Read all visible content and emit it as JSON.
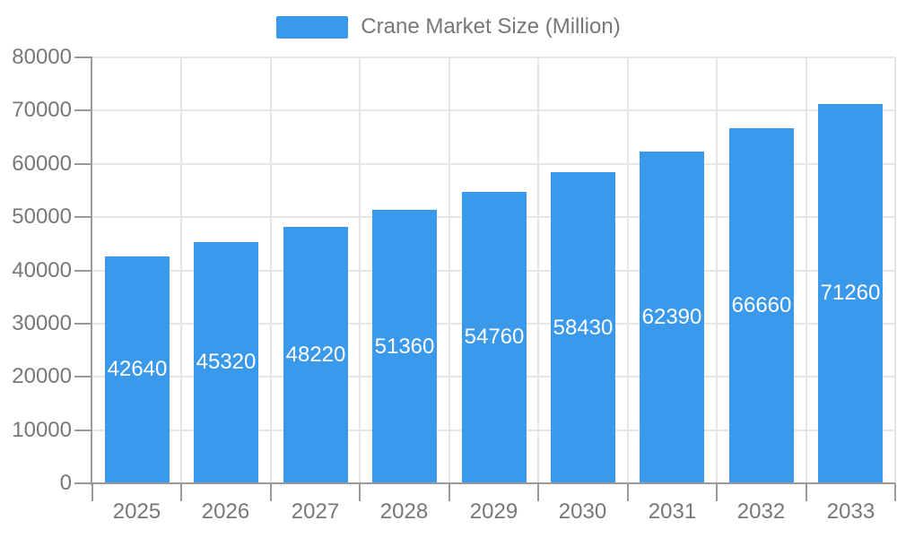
{
  "chart_data": {
    "type": "bar",
    "title": "Crane Market Size (Million)",
    "categories": [
      "2025",
      "2026",
      "2027",
      "2028",
      "2029",
      "2030",
      "2031",
      "2032",
      "2033"
    ],
    "series": [
      {
        "name": "Crane Market Size (Million)",
        "values": [
          42640,
          45320,
          48220,
          51360,
          54760,
          58430,
          62390,
          66660,
          71260
        ]
      }
    ],
    "value_labels": [
      "42640",
      "45320",
      "48220",
      "51360",
      "54760",
      "58430",
      "62390",
      "66660",
      "71260"
    ],
    "value_label_position": "inside-center",
    "xlabel": "",
    "ylabel": "",
    "ylim": [
      0,
      80000
    ],
    "ytick_interval": 10000,
    "ytick_labels": [
      "0",
      "10000",
      "20000",
      "30000",
      "40000",
      "50000",
      "60000",
      "70000",
      "80000"
    ],
    "grid": true,
    "legend_position": "top-center",
    "colors": {
      "bar": "#3B99EC",
      "grid": "#E6E6E6",
      "axis": "#999999",
      "axis_text": "#75787B",
      "legend_text": "#75787B",
      "value_label": "#FFFFFF",
      "background": "#FFFFFF"
    }
  },
  "legend": {
    "label": "Crane Market Size (Million)"
  }
}
